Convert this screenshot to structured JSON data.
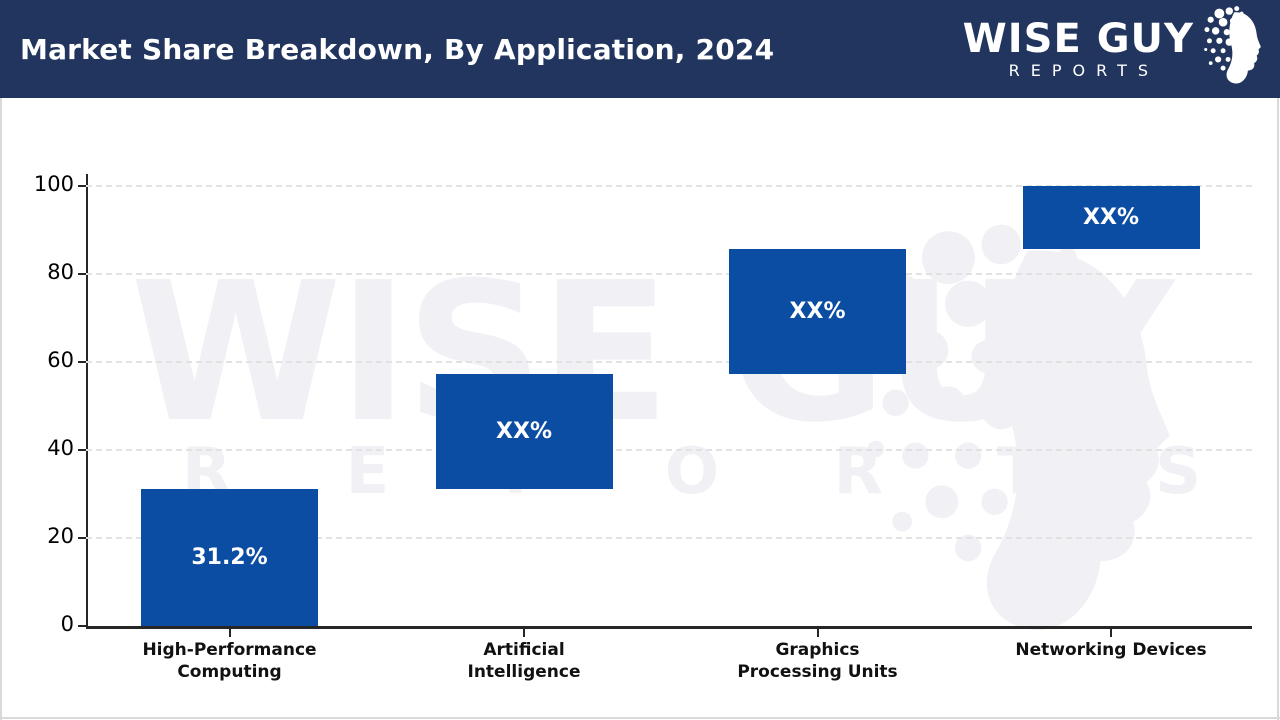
{
  "header": {
    "title": "Market Share Breakdown, By Application, 2024",
    "background_color": "#21355f",
    "logo": {
      "wordmark": "WISE GUY",
      "subtext": "REPORTS"
    }
  },
  "watermark": {
    "wordmark": "WISE GUY",
    "subtext": "R E P O R T S"
  },
  "chart_data": {
    "type": "bar",
    "subtype": "waterfall",
    "title": "Market Share Breakdown, By Application, 2024",
    "xlabel": "",
    "ylabel": "",
    "ylim": [
      0,
      105
    ],
    "y_ticks": [
      0,
      20,
      40,
      60,
      80,
      100
    ],
    "grid": "horizontal-dashed",
    "bar_color": "#0b4da2",
    "categories": [
      "High-Performance Computing",
      "Artificial Intelligence",
      "Graphics Processing Units",
      "Networking Devices"
    ],
    "bars": [
      {
        "label_lines": [
          "High-Performance",
          "Computing"
        ],
        "value_label": "31.2%",
        "start": 0,
        "end": 31.2
      },
      {
        "label_lines": [
          "Artificial",
          "Intelligence"
        ],
        "value_label": "XX%",
        "start": 31.2,
        "end": 57.2
      },
      {
        "label_lines": [
          "Graphics",
          "Processing Units"
        ],
        "value_label": "XX%",
        "start": 57.2,
        "end": 85.6
      },
      {
        "label_lines": [
          "Networking Devices"
        ],
        "value_label": "XX%",
        "start": 85.6,
        "end": 100
      }
    ]
  }
}
